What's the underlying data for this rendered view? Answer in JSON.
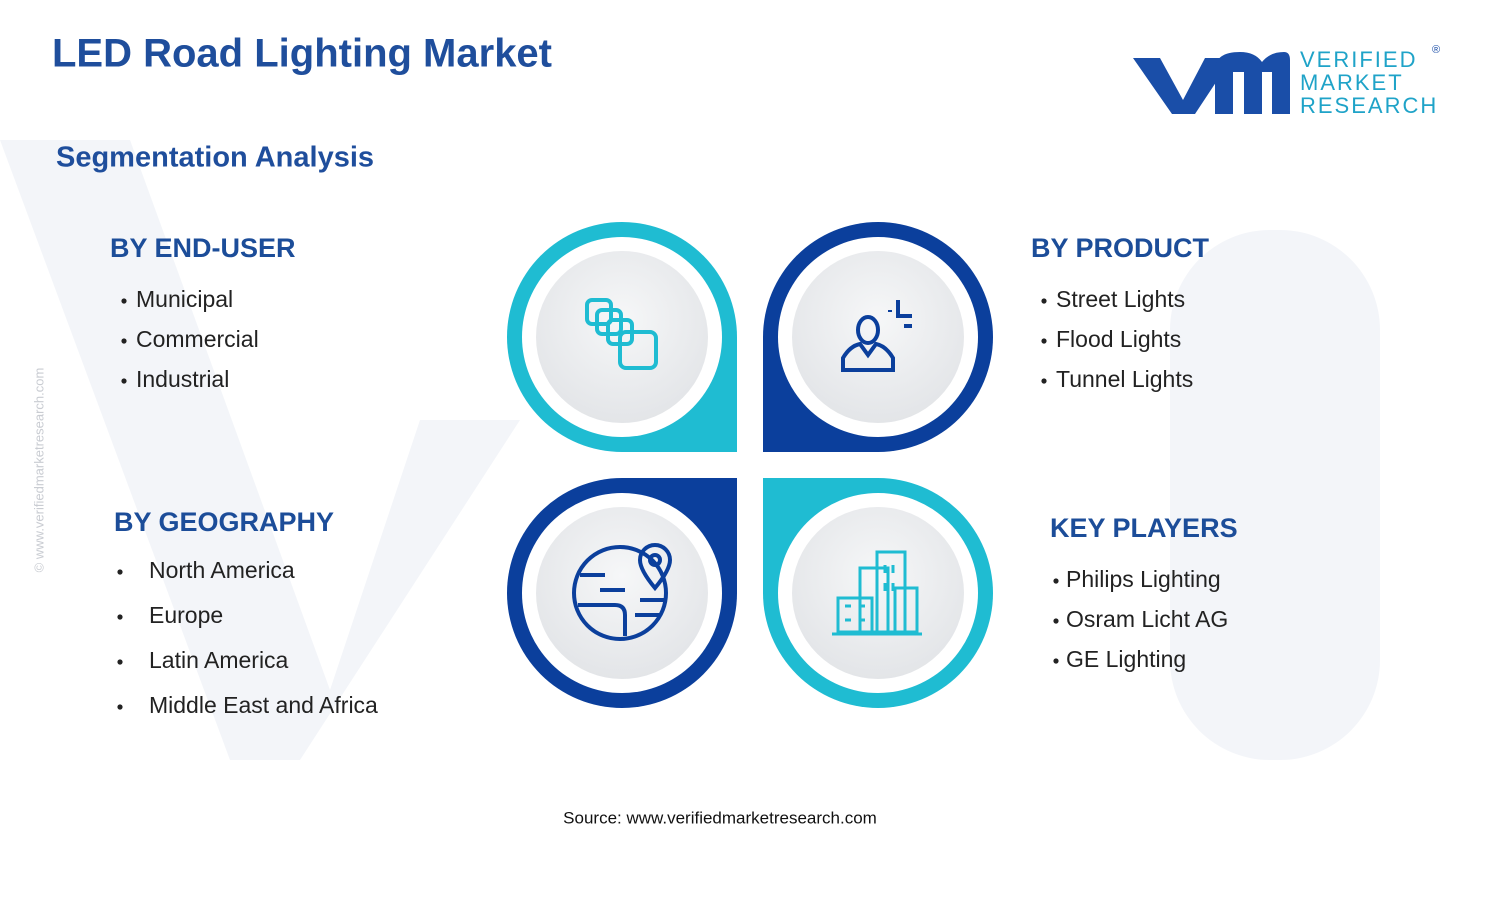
{
  "header": {
    "title": "LED Road Lighting Market",
    "subtitle": "Segmentation Analysis"
  },
  "logo": {
    "lines": [
      "VERIFIED",
      "MARKET",
      "RESEARCH"
    ],
    "mark": "®"
  },
  "watermark": "© www.verifiedmarketresearch.com",
  "sections": [
    {
      "heading": "BY END-USER",
      "items": [
        "Municipal",
        "Commercial",
        "Industrial"
      ]
    },
    {
      "heading": "BY PRODUCT",
      "items": [
        "Street Lights",
        "Flood Lights",
        "Tunnel Lights"
      ]
    },
    {
      "heading": "BY GEOGRAPHY",
      "items": [
        "North America",
        "Europe",
        "Latin America",
        "Middle East and Africa"
      ]
    },
    {
      "heading": "KEY PLAYERS",
      "items": [
        "Philips Lighting",
        "Osram Licht AG",
        "GE Lighting"
      ]
    }
  ],
  "source": "Source: www.verifiedmarketresearch.com"
}
